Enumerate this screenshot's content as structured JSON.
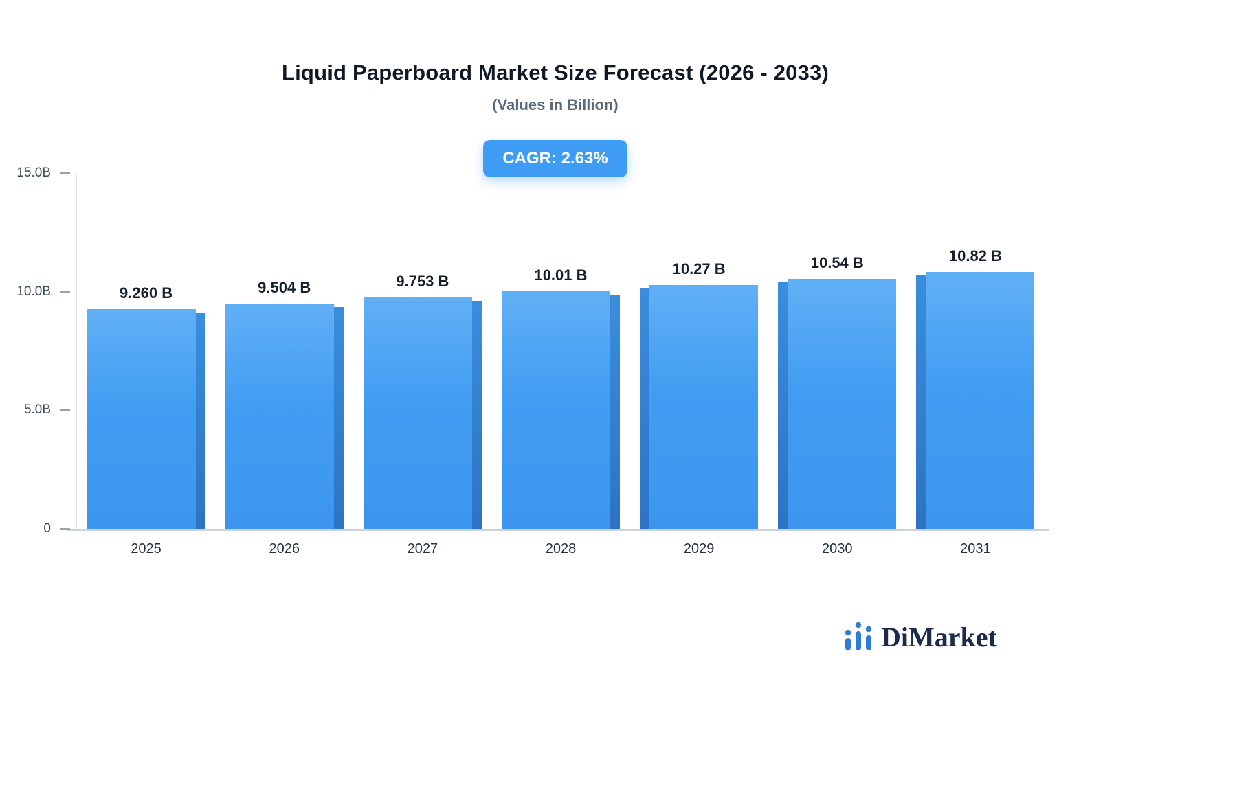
{
  "header": {
    "title": "Liquid Paperboard Market Size Forecast (2026 - 2033)",
    "subtitle": "(Values in Billion)",
    "cagr_badge": "CAGR: 2.63%"
  },
  "chart_data": {
    "type": "bar",
    "title": "Liquid Paperboard Market Size Forecast (2026 - 2033)",
    "subtitle": "(Values in Billion)",
    "categories": [
      "2025",
      "2026",
      "2027",
      "2028",
      "2029",
      "2030",
      "2031"
    ],
    "values": [
      9.26,
      9.504,
      9.753,
      10.01,
      10.27,
      10.54,
      10.82
    ],
    "value_labels": [
      "9.260 B",
      "9.504 B",
      "9.753 B",
      "10.01 B",
      "10.27 B",
      "10.54 B",
      "10.82 B"
    ],
    "xlabel": "",
    "ylabel": "",
    "ylim": [
      0,
      15
    ],
    "y_ticks": [
      {
        "value": 0,
        "label": "0"
      },
      {
        "value": 5,
        "label": "5.0B"
      },
      {
        "value": 10,
        "label": "10.0B"
      },
      {
        "value": 15,
        "label": "15.0B"
      }
    ],
    "grid": false,
    "legend_position": "none",
    "bar_color": "#42a0f2",
    "bar_side_color": "#2d73c4",
    "annotation": "CAGR: 2.63%"
  },
  "logo": {
    "text": "DiMarket",
    "icon": "bar-chart-logo-icon",
    "text_color": "#1c2a4c",
    "icon_color": "#2e7cd6"
  }
}
